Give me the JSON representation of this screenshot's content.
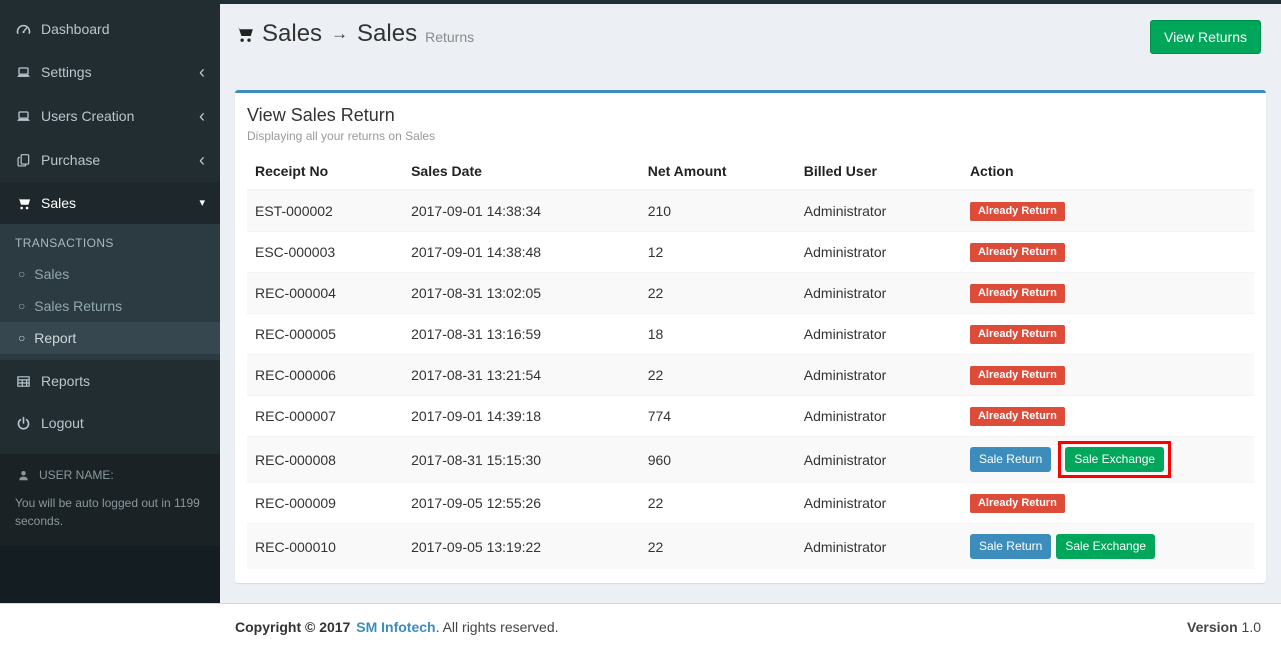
{
  "colors": {
    "primary": "#3c8dbc",
    "success": "#00a65a",
    "danger": "#dd4b39",
    "annotation": "#ff0000",
    "sidebar_bg": "#222d32",
    "sidebar_active_bg": "#1e282c",
    "submenu_bg": "#2c3b41",
    "content_bg": "#ecf0f5",
    "topstrip": "#1e2f36"
  },
  "icons": {
    "chevron_collapsed": "‹",
    "chevron_expanded": "▾",
    "submenu_bullet": "○",
    "title_arrow": "→"
  },
  "sidebar": {
    "items": [
      {
        "label": "Dashboard"
      },
      {
        "label": "Settings"
      },
      {
        "label": "Users Creation"
      },
      {
        "label": "Purchase"
      },
      {
        "label": "Sales"
      }
    ],
    "submenu_header": "TRANSACTIONS",
    "submenu": [
      {
        "label": "Sales"
      },
      {
        "label": "Sales Returns"
      },
      {
        "label": "Report"
      }
    ],
    "bottom_items": [
      {
        "label": "Reports"
      },
      {
        "label": "Logout"
      }
    ],
    "user_label": "USER NAME:",
    "logout_notice": "You will be auto logged out in 1199 seconds."
  },
  "header": {
    "title": "Sales",
    "subtitle_main": "Sales",
    "subtitle_small": "Returns",
    "button": "View Returns"
  },
  "panel": {
    "title": "View Sales Return",
    "subtitle": "Displaying all your returns on Sales"
  },
  "table": {
    "columns": [
      "Receipt No",
      "Sales Date",
      "Net Amount",
      "Billed User",
      "Action"
    ],
    "rows": [
      {
        "receipt": "EST-000002",
        "date": "2017-09-01 14:38:34",
        "amount": "210",
        "user": "Administrator",
        "actions": "already"
      },
      {
        "receipt": "ESC-000003",
        "date": "2017-09-01 14:38:48",
        "amount": "12",
        "user": "Administrator",
        "actions": "already"
      },
      {
        "receipt": "REC-000004",
        "date": "2017-08-31 13:02:05",
        "amount": "22",
        "user": "Administrator",
        "actions": "already"
      },
      {
        "receipt": "REC-000005",
        "date": "2017-08-31 13:16:59",
        "amount": "18",
        "user": "Administrator",
        "actions": "already"
      },
      {
        "receipt": "REC-000006",
        "date": "2017-08-31 13:21:54",
        "amount": "22",
        "user": "Administrator",
        "actions": "already"
      },
      {
        "receipt": "REC-000007",
        "date": "2017-09-01 14:39:18",
        "amount": "774",
        "user": "Administrator",
        "actions": "already"
      },
      {
        "receipt": "REC-000008",
        "date": "2017-08-31 15:15:30",
        "amount": "960",
        "user": "Administrator",
        "actions": "both",
        "highlight_exchange": true
      },
      {
        "receipt": "REC-000009",
        "date": "2017-09-05 12:55:26",
        "amount": "22",
        "user": "Administrator",
        "actions": "already"
      },
      {
        "receipt": "REC-000010",
        "date": "2017-09-05 13:19:22",
        "amount": "22",
        "user": "Administrator",
        "actions": "both"
      }
    ]
  },
  "labels": {
    "already_return": "Already Return",
    "sale_return": "Sale Return",
    "sale_exchange": "Sale Exchange"
  },
  "footer": {
    "copyright_bold": "Copyright © 2017",
    "company": "SM Infotech",
    "rights": ". All rights reserved.",
    "version_label": "Version",
    "version_value": "1.0"
  }
}
